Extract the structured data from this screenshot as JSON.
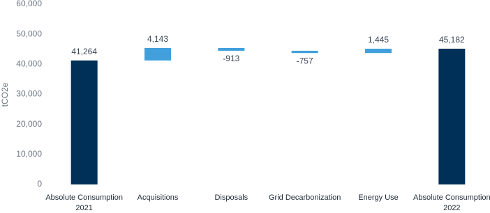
{
  "chart_data": {
    "type": "waterfall",
    "categories": [
      "Absolute Consumption 2021",
      "Acquisitions",
      "Disposals",
      "Grid Decarbonization",
      "Energy Use",
      "Absolute Consumption 2022"
    ],
    "values": [
      41264,
      4143,
      -913,
      -757,
      1445,
      45182
    ],
    "value_labels": [
      "41,264",
      "4,143",
      "-913",
      "-757",
      "1,445",
      "45,182"
    ],
    "totals": [
      true,
      false,
      false,
      false,
      false,
      true
    ],
    "total_color": "#003057",
    "change_color": "#41a0dc",
    "y_label": "tCO2e",
    "ylim": [
      0,
      60000
    ],
    "yticks": [
      0,
      {
        "value": 10000,
        "label": "10,000"
      },
      {
        "value": 20000,
        "label": "20,000"
      },
      {
        "value": 30000,
        "label": "30,000"
      },
      {
        "value": 40000,
        "label": "40,000"
      },
      {
        "value": 50000,
        "label": "50,000"
      },
      {
        "value": 60000,
        "label": "60,000"
      }
    ]
  }
}
